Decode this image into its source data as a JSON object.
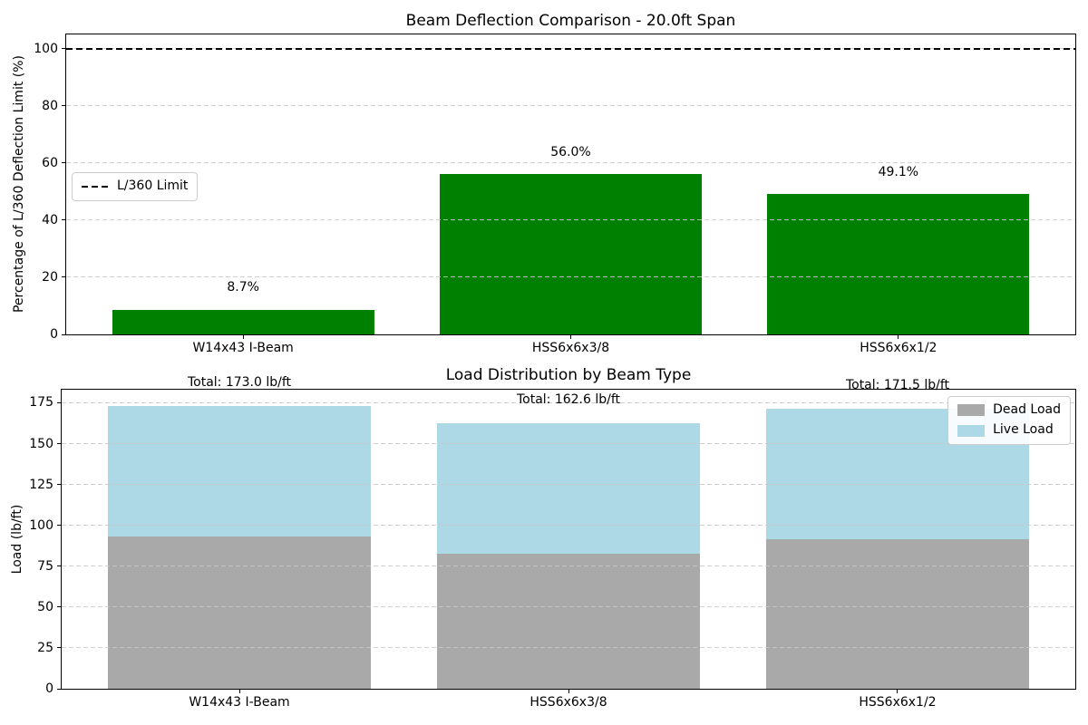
{
  "figure": {
    "background": "#ffffff",
    "text_color": "#000000",
    "grid_color": "#c8c8c8"
  },
  "chart_data": [
    {
      "type": "bar",
      "title": "Beam Deflection Comparison - 20.0ft Span",
      "xlabel": "",
      "ylabel": "Percentage of L/360 Deflection Limit (%)",
      "categories": [
        "W14x43 I-Beam",
        "HSS6x6x3/8",
        "HSS6x6x1/2"
      ],
      "values": [
        8.7,
        56.0,
        49.1
      ],
      "bar_labels": [
        "8.7%",
        "56.0%",
        "49.1%"
      ],
      "bar_color": "#008000",
      "ylim": [
        0,
        105
      ],
      "yticks": [
        0,
        20,
        40,
        60,
        80,
        100
      ],
      "grid": true,
      "label_offset": 5.5,
      "reference_line": {
        "value": 100,
        "color": "#000000",
        "style": "dashed",
        "label": "L/360 Limit"
      },
      "legend": {
        "position": "center-left",
        "entries": [
          {
            "label": "L/360 Limit",
            "swatch": "dashed-line",
            "color": "#000000"
          }
        ]
      }
    },
    {
      "type": "stacked-bar",
      "title": "Load Distribution by Beam Type",
      "xlabel": "",
      "ylabel": "Load (lb/ft)",
      "categories": [
        "W14x43 I-Beam",
        "HSS6x6x3/8",
        "HSS6x6x1/2"
      ],
      "series": [
        {
          "name": "Dead Load",
          "color": "#a9a9a9",
          "values": [
            93.0,
            82.6,
            91.5
          ]
        },
        {
          "name": "Live Load",
          "color": "#add8e6",
          "values": [
            80.0,
            80.0,
            80.0
          ]
        }
      ],
      "totals": [
        173.0,
        162.6,
        171.5
      ],
      "total_labels": [
        "Total: 173.0 lb/ft",
        "Total: 162.6 lb/ft",
        "Total: 171.5 lb/ft"
      ],
      "ylim": [
        0,
        183
      ],
      "yticks": [
        0,
        25,
        50,
        75,
        100,
        125,
        150,
        175
      ],
      "grid": true,
      "label_offset": 10.5,
      "legend": {
        "position": "top-right",
        "entries": [
          {
            "label": "Dead Load",
            "swatch": "patch",
            "color": "#a9a9a9"
          },
          {
            "label": "Live Load",
            "swatch": "patch",
            "color": "#add8e6"
          }
        ]
      }
    }
  ]
}
